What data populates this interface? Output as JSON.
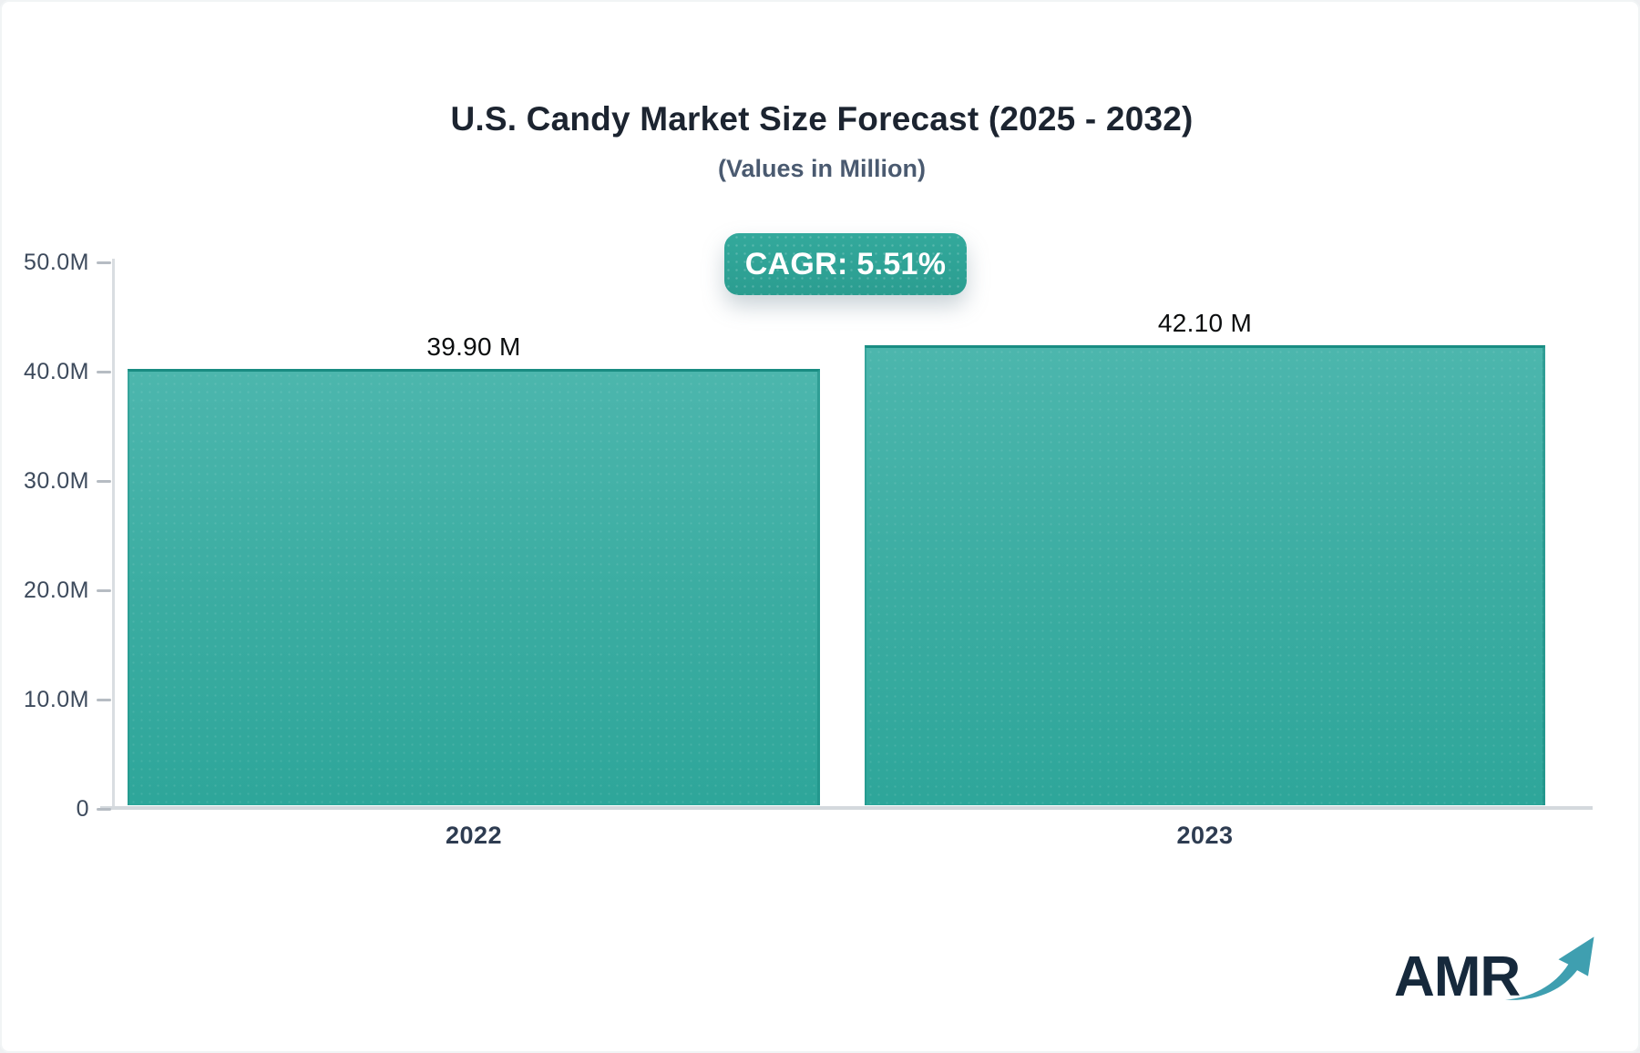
{
  "chart_data": {
    "type": "bar",
    "title": "U.S. Candy Market Size Forecast (2025 - 2032)",
    "subtitle": "(Values in Million)",
    "badge_label": "CAGR: 5.51%",
    "categories": [
      "2022",
      "2023"
    ],
    "values": [
      39.9,
      42.1
    ],
    "value_labels": [
      "39.90 M",
      "42.10 M"
    ],
    "xlabel": "",
    "ylabel": "",
    "ylim": [
      0,
      50
    ],
    "y_tick_labels": [
      "50.0M",
      "40.0M",
      "30.0M",
      "20.0M",
      "10.0M",
      "0"
    ],
    "y_tick_values": [
      50,
      40,
      30,
      20,
      10,
      0
    ],
    "grid": false,
    "legend": false,
    "colors": {
      "bar_fill_top": "#4cb6ad",
      "bar_fill_bottom": "#2ea69a",
      "bar_border": "#12847b",
      "badge_background": "#2ea295",
      "badge_text": "#ffffff",
      "axis_line": "#d9dde1",
      "tick_label": "#3d4a5c",
      "title_text": "#1c2430",
      "subtitle_text": "#4a5a70",
      "value_label_text": "#0b0d0e",
      "category_label_text": "#2e3c51",
      "logo_text": "#16293c",
      "logo_arrow": "#3f9fb0"
    }
  },
  "branding": {
    "logo_text": "AMR"
  }
}
